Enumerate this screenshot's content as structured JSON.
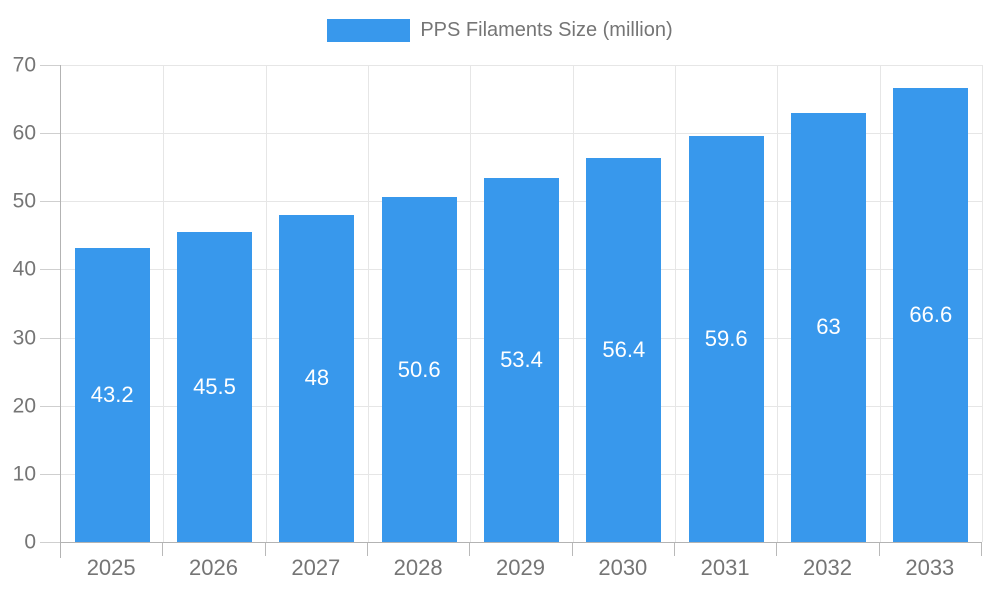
{
  "chart_data": {
    "type": "bar",
    "title": "PPS Filaments Size (million)",
    "legend": [
      {
        "label": "PPS Filaments Size (million)",
        "color": "#3898ec"
      }
    ],
    "legend_position": "top-center",
    "categories": [
      "2025",
      "2026",
      "2027",
      "2028",
      "2029",
      "2030",
      "2031",
      "2032",
      "2033"
    ],
    "values": [
      43.2,
      45.5,
      48,
      50.6,
      53.4,
      56.4,
      59.6,
      63,
      66.6
    ],
    "series": [
      {
        "name": "PPS Filaments Size (million)",
        "values": [
          43.2,
          45.5,
          48,
          50.6,
          53.4,
          56.4,
          59.6,
          63,
          66.6
        ]
      }
    ],
    "xlabel": "",
    "ylabel": "",
    "ylim": [
      0,
      70
    ],
    "yticks": [
      0,
      10,
      20,
      30,
      40,
      50,
      60,
      70
    ],
    "grid": true,
    "colors": {
      "bar": "#3898ec",
      "bar_value_text": "#ffffff",
      "axis_text": "#757575",
      "legend_text": "#757575",
      "gridline": "#e6e6e6",
      "axis_line": "#b3b3b3",
      "y_tick": "#cfcfcf",
      "background": "#ffffff"
    }
  }
}
